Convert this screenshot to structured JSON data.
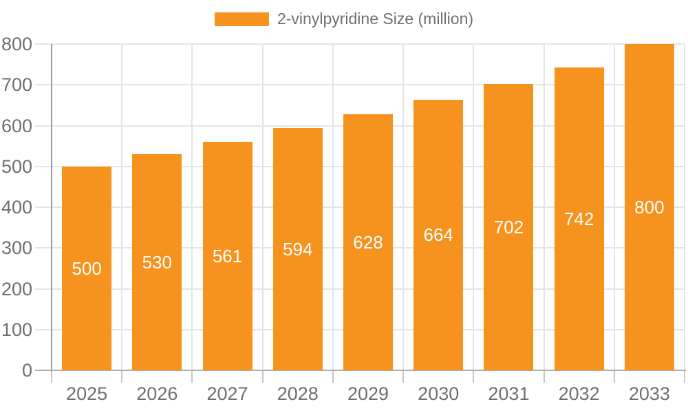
{
  "chart_data": {
    "type": "bar",
    "title": "",
    "legend": "2-vinylpyridine Size (million)",
    "legend_position": "top",
    "categories": [
      "2025",
      "2026",
      "2027",
      "2028",
      "2029",
      "2030",
      "2031",
      "2032",
      "2033"
    ],
    "values": [
      500,
      530,
      561,
      594,
      628,
      664,
      702,
      742,
      800
    ],
    "xlabel": "",
    "ylabel": "",
    "ylim": [
      0,
      800
    ],
    "y_ticks": [
      0,
      100,
      200,
      300,
      400,
      500,
      600,
      700,
      800
    ],
    "grid": true,
    "colors": {
      "bar": "#f6921e",
      "bar_label": "#ffffff",
      "axis_text": "#6f6f6f",
      "axis_line": "#9a9a9a",
      "baseline": "#adadad",
      "tick": "#c6c6c6",
      "gridline": "#e4e4e4"
    }
  }
}
